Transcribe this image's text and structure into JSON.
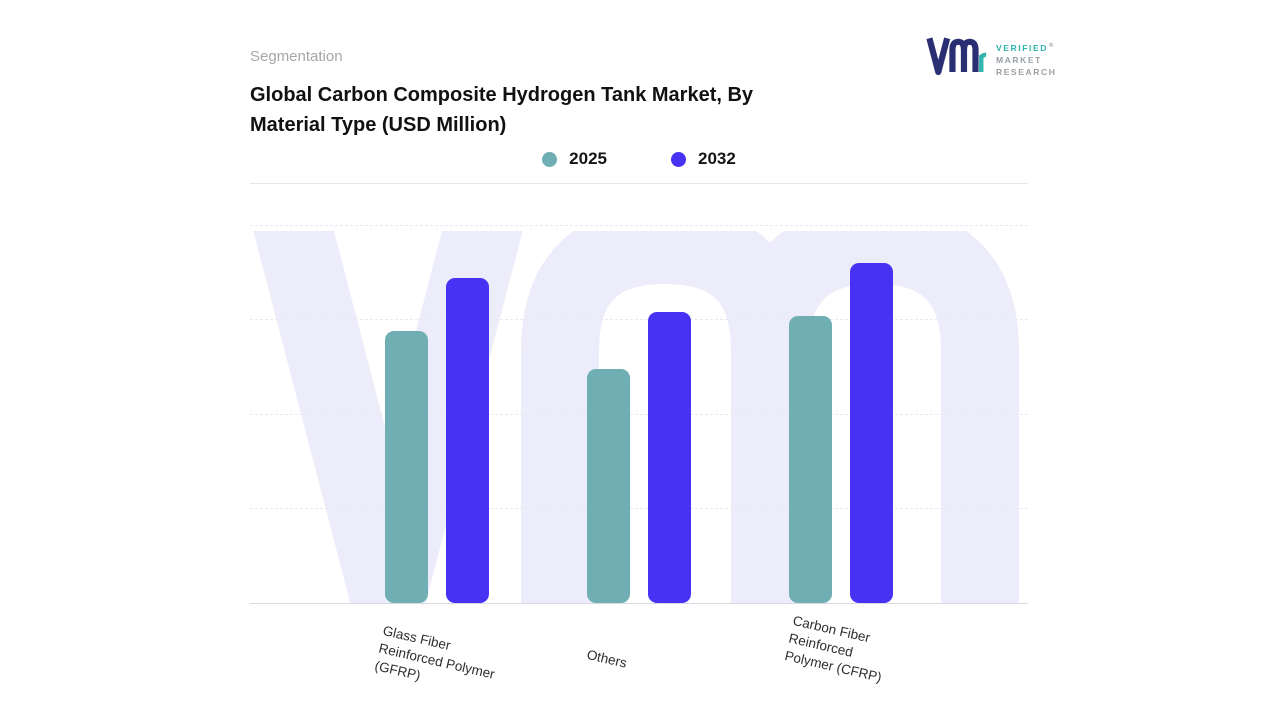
{
  "page": {
    "eyebrow": "Segmentation"
  },
  "title": {
    "line1": "Global Carbon Composite Hydrogen Tank Market, By",
    "line2": "Material Type (USD Million)"
  },
  "logo": {
    "verified": "VERIFIED",
    "market": "MARKET",
    "research": "RESEARCH",
    "registered": "®"
  },
  "chart_data": {
    "type": "bar",
    "title": "Global Carbon Composite Hydrogen Tank Market, By Material Type (USD Million)",
    "categories": [
      "Glass Fiber Reinforced Polymer (GFRP)",
      "Others",
      "Carbon Fiber Reinforced Polymer (CFRP)"
    ],
    "series": [
      {
        "name": "2025",
        "color": "#6FAFB3",
        "values": [
          72,
          62,
          76
        ]
      },
      {
        "name": "2032",
        "color": "#4732F4",
        "values": [
          86,
          77,
          90
        ]
      }
    ],
    "ylim": [
      0,
      100
    ],
    "y_axis_tick_labels": [],
    "grid": "horizontal-dashed",
    "legend_position": "top-center",
    "value_labels": false
  },
  "colors": {
    "series_2025": "#6FAFB3",
    "series_2032": "#4732F4",
    "watermark": "#EDECFA",
    "gridline": "#E9E9F1",
    "axis_line": "#D9D9E3",
    "logo_navy": "#2A2E72",
    "logo_teal": "#35B5AF"
  }
}
